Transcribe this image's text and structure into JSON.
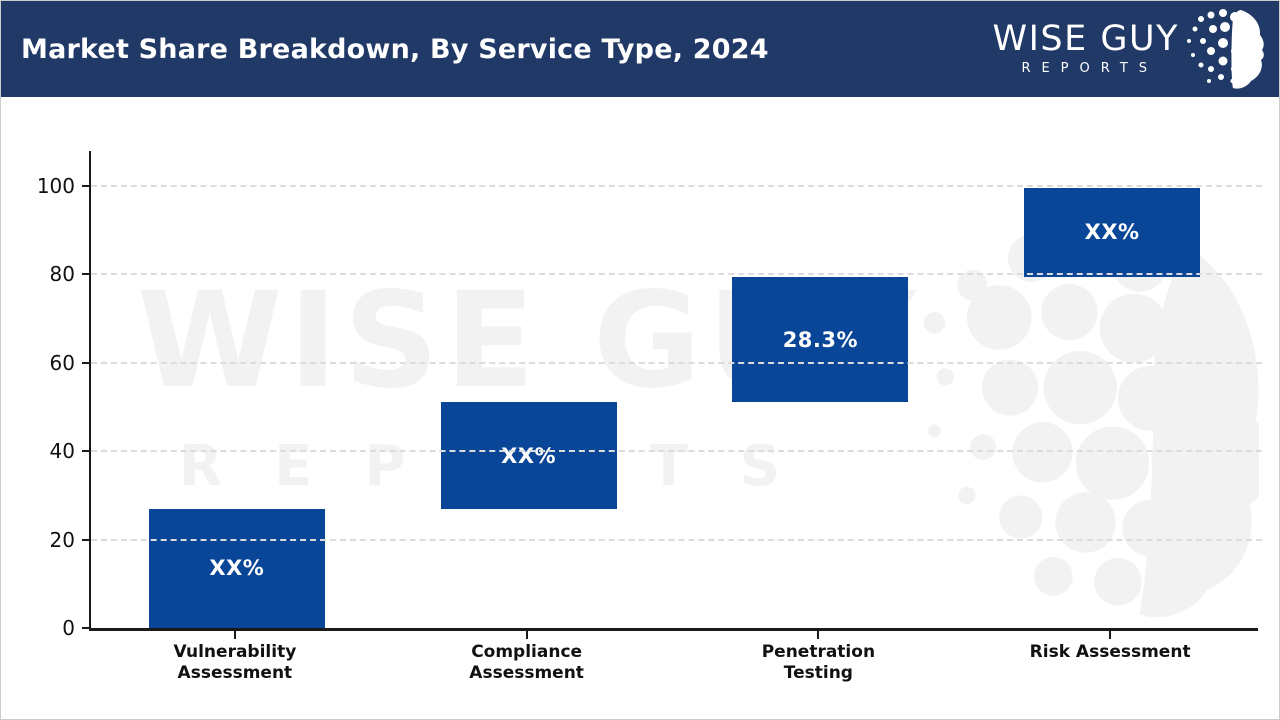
{
  "colors": {
    "header_bg": "#203966",
    "bar": "#0a4697",
    "grid": "#dcdcdc",
    "axis": "#1a1a1a",
    "watermark": "#f2f2f2",
    "title_text": "#ffffff",
    "bar_label_text": "#ffffff",
    "border": "#cccccc"
  },
  "header": {
    "title": "Market Share Breakdown, By Service Type, 2024",
    "logo": {
      "line1": "WISE GUY",
      "line2": "REPORTS"
    }
  },
  "watermark": {
    "line1": "WISE GUY",
    "line2": "REPORTS"
  },
  "chart_data": {
    "type": "bar",
    "subtype": "waterfall",
    "title": "Market Share Breakdown, By Service Type, 2024",
    "categories": [
      "Vulnerability Assessment",
      "Compliance Assessment",
      "Penetration Testing",
      "Risk Assessment"
    ],
    "category_lines": [
      [
        "Vulnerability",
        "Assessment"
      ],
      [
        "Compliance",
        "Assessment"
      ],
      [
        "Penetration",
        "Testing"
      ],
      [
        "Risk Assessment"
      ]
    ],
    "segments": [
      {
        "category": "Vulnerability Assessment",
        "start": 0,
        "end": 26.9,
        "value": 26.9,
        "label": "XX%"
      },
      {
        "category": "Compliance Assessment",
        "start": 26.9,
        "end": 51.0,
        "value": 24.1,
        "label": "XX%"
      },
      {
        "category": "Penetration Testing",
        "start": 51.0,
        "end": 79.3,
        "value": 28.3,
        "label": "28.3%"
      },
      {
        "category": "Risk Assessment",
        "start": 79.3,
        "end": 99.5,
        "value": 20.2,
        "label": "XX%"
      }
    ],
    "xlabel": "",
    "ylabel": "",
    "ylim": [
      0,
      100
    ],
    "yticks": [
      0,
      20,
      40,
      60,
      80,
      100
    ],
    "grid": "horizontal-dashed-over-bars",
    "legend": "none"
  }
}
